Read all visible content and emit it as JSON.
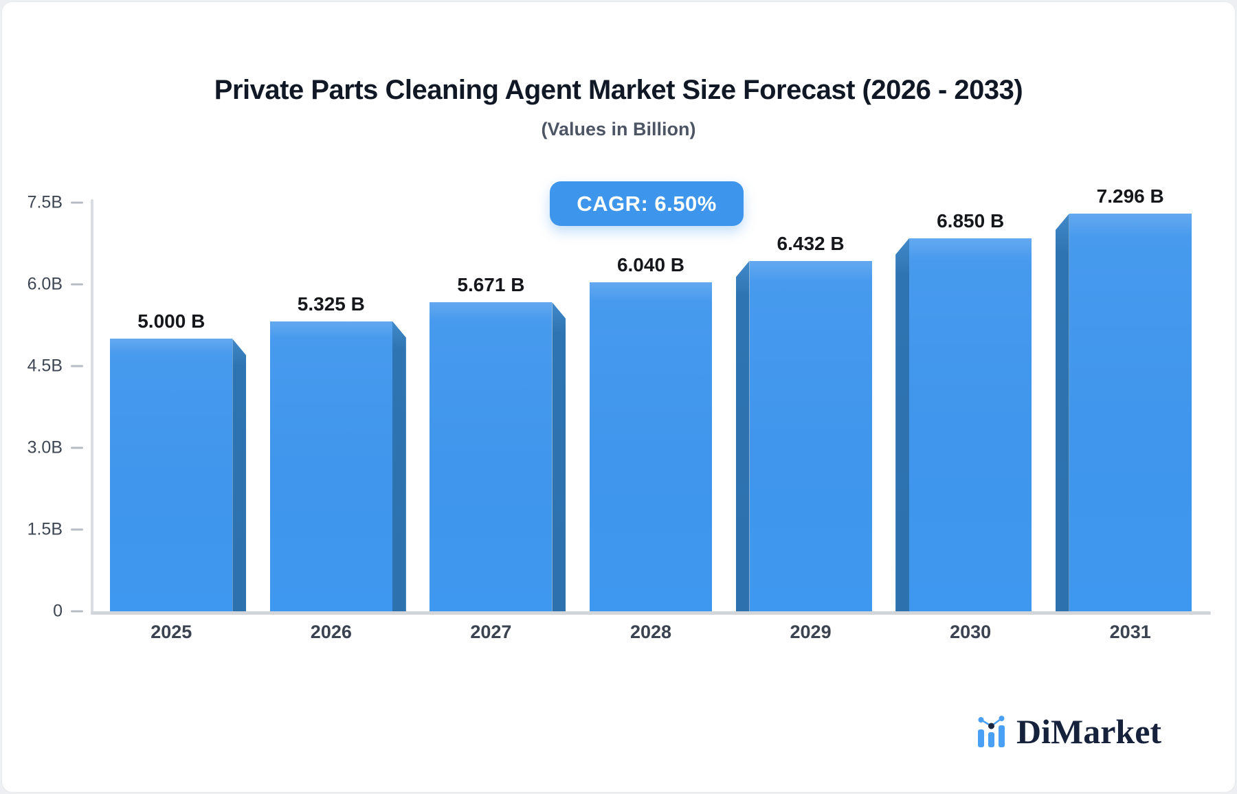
{
  "header": {
    "title": "Private Parts Cleaning Agent Market Size Forecast (2026 - 2033)",
    "subtitle": "(Values in Billion)",
    "cagr_badge_label": "CAGR: 6.50%"
  },
  "chart_data": {
    "type": "bar",
    "title": "Private Parts Cleaning Agent Market Size Forecast (2026 - 2033)",
    "subtitle": "(Values in Billion)",
    "categories": [
      "2025",
      "2026",
      "2027",
      "2028",
      "2029",
      "2030",
      "2031"
    ],
    "values": [
      5.0,
      5.325,
      5.671,
      6.04,
      6.432,
      6.85,
      7.296
    ],
    "value_labels": [
      "5.000 B",
      "5.325 B",
      "5.671 B",
      "6.040 B",
      "6.432 B",
      "6.850 B",
      "7.296 B"
    ],
    "xlabel": "",
    "ylabel": "",
    "ylim": [
      0,
      7.5
    ],
    "yticks": [
      {
        "value": 0,
        "label": "0"
      },
      {
        "value": 1.5,
        "label": "1.5B"
      },
      {
        "value": 3.0,
        "label": "3.0B"
      },
      {
        "value": 4.5,
        "label": "4.5B"
      },
      {
        "value": 6.0,
        "label": "6.0B"
      },
      {
        "value": 7.5,
        "label": "7.5B"
      }
    ],
    "annotation": "CAGR: 6.50%",
    "legend_position": "none",
    "grid": false,
    "bar_style": "3d-beveled"
  },
  "colors": {
    "bar_main": "#3f96ec",
    "bar_highlight": "#64a9f0",
    "bar_bevel": "#2d71ae",
    "badge_background": "#3e96ec",
    "badge_text": "#ffffff",
    "title_text": "#101826",
    "subtitle_text": "#4d5565",
    "axis_line": "#d2d6db",
    "tick_text": "#3f4654",
    "logo_blue": "#4aa0f4",
    "logo_navy": "#16223c"
  },
  "branding": {
    "logo_text": "DiMarket",
    "logo_icon": "bar-chart-logo-icon"
  }
}
